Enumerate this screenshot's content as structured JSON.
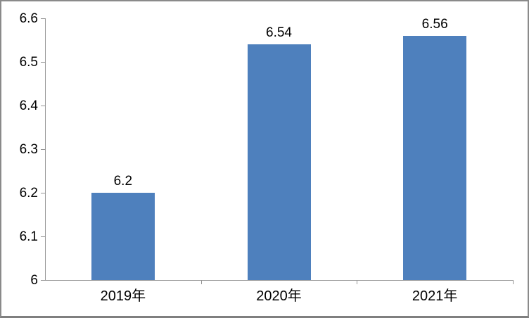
{
  "chart_data": {
    "type": "bar",
    "title": "",
    "xlabel": "",
    "ylabel": "",
    "categories": [
      "2019年",
      "2020年",
      "2021年"
    ],
    "values": [
      6.2,
      6.54,
      6.56
    ],
    "data_labels": [
      "6.2",
      "6.54",
      "6.56"
    ],
    "ylim": [
      6,
      6.6
    ],
    "ytick_step": 0.1,
    "ytick_labels": [
      "6",
      "6.1",
      "6.2",
      "6.3",
      "6.4",
      "6.5",
      "6.6"
    ],
    "grid": "off",
    "legend": "none",
    "colors": {
      "bar": "#4e80bd",
      "axis": "#969696",
      "text": "#000000",
      "frame_border": "#8a8a8a",
      "background": "#ffffff"
    }
  }
}
